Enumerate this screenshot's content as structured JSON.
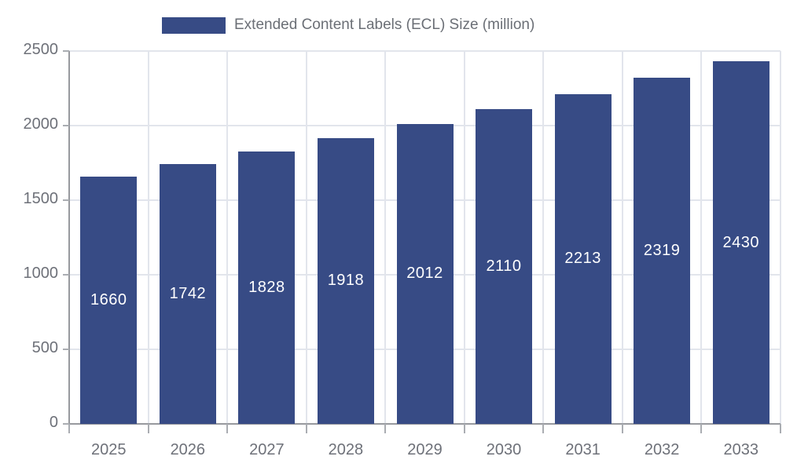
{
  "chart_data": {
    "type": "bar",
    "title": "Extended Content Labels (ECL) Size (million)",
    "legend_entries": [
      "Extended Content Labels (ECL) Size (million)"
    ],
    "legend_position": "top",
    "categories": [
      "2025",
      "2026",
      "2027",
      "2028",
      "2029",
      "2030",
      "2031",
      "2032",
      "2033"
    ],
    "values": [
      1660,
      1742,
      1828,
      1918,
      2012,
      2110,
      2213,
      2319,
      2430
    ],
    "xlabel": "",
    "ylabel": "",
    "ylim": [
      0,
      2500
    ],
    "yticks": [
      0,
      500,
      1000,
      1500,
      2000,
      2500
    ],
    "grid": true,
    "value_labels_shown": true
  },
  "colors": {
    "bar": "#374b85",
    "grid_line": "#e2e5ec",
    "axis_line": "#97999e",
    "tick": "#aaadb2",
    "axis_text": "#6e7179",
    "legend_text": "#6b6f76",
    "value_label_text": "#ffffff"
  }
}
